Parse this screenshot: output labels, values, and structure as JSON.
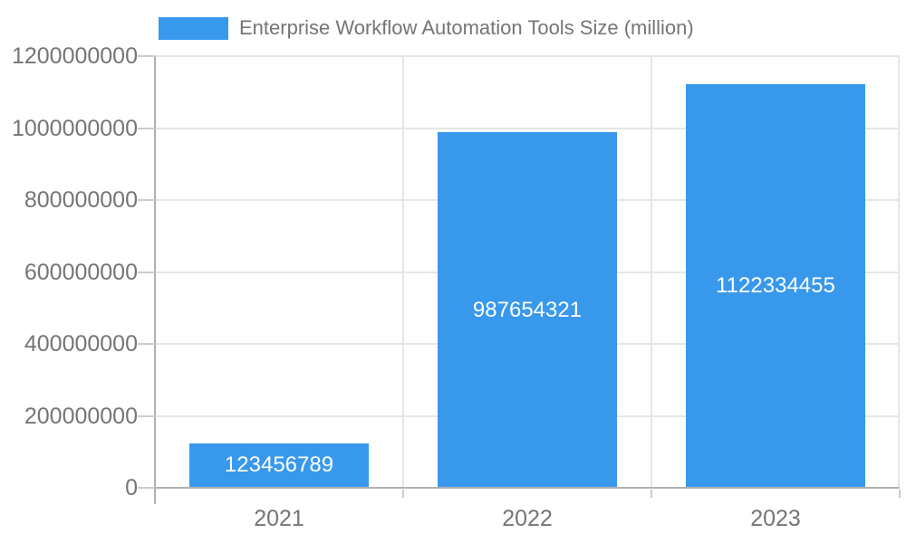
{
  "legend": {
    "label": "Enterprise Workflow Automation Tools Size (million)"
  },
  "colors": {
    "bar": "#3898ec",
    "legend_text": "#757575",
    "axis_label": "#757575",
    "value_label": "#ffffff",
    "gridline": "#e6e6e6",
    "axis_line": "#b0b0b0",
    "tick": "#cccccc",
    "background": "#ffffff"
  },
  "chart_data": {
    "type": "bar",
    "title": "Enterprise Workflow Automation Tools Size (million)",
    "categories": [
      "2021",
      "2022",
      "2023"
    ],
    "values": [
      123456789,
      987654321,
      1122334455
    ],
    "value_labels": [
      "123456789",
      "987654321",
      "1122334455"
    ],
    "xlabel": "",
    "ylabel": "",
    "ylim": [
      0,
      1200000000
    ],
    "y_ticks": [
      0,
      200000000,
      400000000,
      600000000,
      800000000,
      1000000000,
      1200000000
    ],
    "y_tick_labels": [
      "0",
      "200000000",
      "400000000",
      "600000000",
      "800000000",
      "1000000000",
      "1200000000"
    ],
    "grid": true,
    "legend_position": "top",
    "value_labels_inside_bars": true
  }
}
